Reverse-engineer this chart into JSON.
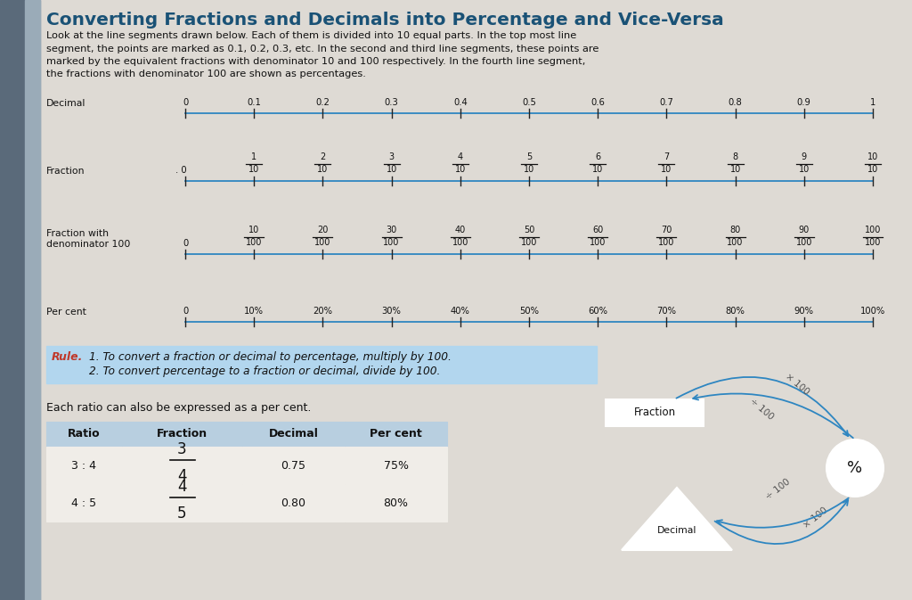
{
  "title": "Converting Fractions and Decimals into Percentage and Vice-Versa",
  "title_color": "#1a5276",
  "body_lines": [
    "Look at the line segments drawn below. Each of them is divided into 10 equal parts. In the top most line",
    "segment, the points are marked as 0.1, 0.2, 0.3, etc. In the second and third line segments, these points are",
    "marked by the equivalent fractions with denominator 10 and 100 respectively. In the fourth line segment,",
    "the fractions with denominator 100 are shown as percentages."
  ],
  "bg_color": "#dedad4",
  "decimal_values": [
    "0",
    "0.1",
    "0.2",
    "0.3",
    "0.4",
    "0.5",
    "0.6",
    "0.7",
    "0.8",
    "0.9",
    "1"
  ],
  "fraction_numerators": [
    "0",
    "1",
    "2",
    "3",
    "4",
    "5",
    "6",
    "7",
    "8",
    "9",
    "10"
  ],
  "fraction_denom": "10",
  "fraction100_numerators": [
    "0",
    "10",
    "20",
    "30",
    "40",
    "50",
    "60",
    "70",
    "80",
    "90",
    "100"
  ],
  "fraction100_denom": "100",
  "percent_values": [
    "0",
    "10%",
    "20%",
    "30%",
    "40%",
    "50%",
    "60%",
    "70%",
    "80%",
    "90%",
    "100%"
  ],
  "row_labels": [
    "Decimal",
    "Fraction",
    "Fraction with\ndenominator 100",
    "Per cent"
  ],
  "rule_bg_color": "#aed6f1",
  "rule_text_line1": "1. To convert a fraction or decimal to percentage, multiply by 100.",
  "rule_text_line2": "2. To convert percentage to a fraction or decimal, divide by 100.",
  "rule_label_color": "#c0392b",
  "table_headers": [
    "Ratio",
    "Fraction",
    "Decimal",
    "Per cent"
  ],
  "table_row1_ratio": "3 : 4",
  "table_row1_frac_num": "3",
  "table_row1_frac_den": "4",
  "table_row1_dec": "0.75",
  "table_row1_pct": "75%",
  "table_row2_ratio": "4 : 5",
  "table_row2_frac_num": "4",
  "table_row2_frac_den": "5",
  "table_row2_dec": "0.80",
  "table_row2_pct": "80%",
  "diagram_fraction_label": "Fraction",
  "diagram_percent_label": "%",
  "diagram_decimal_label": "Decimal",
  "arrow_color": "#2e86c1",
  "line_color": "#2e86c1",
  "sidebar_colors": [
    "#6d7b8d",
    "#8a9bb0",
    "#a0b0c0"
  ]
}
